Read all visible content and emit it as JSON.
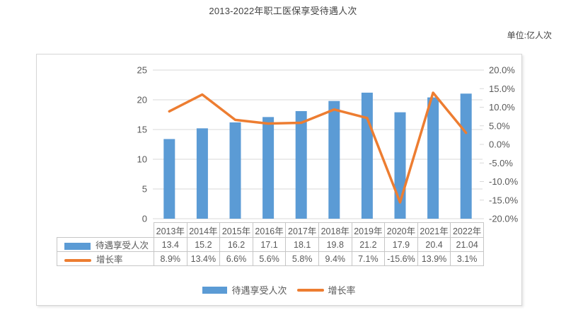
{
  "title": "2013-2022年职工医保享受待遇人次",
  "unit_label": "单位:亿人次",
  "colors": {
    "bar": "#5B9BD5",
    "line": "#ED7D31",
    "grid": "#D9D9D9",
    "axis_text": "#595959",
    "table_text": "#595959",
    "table_border": "#C6C6C6",
    "frame_border": "#D6D6D6"
  },
  "chart_data": {
    "type": "bar+line",
    "categories": [
      "2013年",
      "2014年",
      "2015年",
      "2016年",
      "2017年",
      "2018年",
      "2019年",
      "2020年",
      "2021年",
      "2022年"
    ],
    "series": [
      {
        "name": "待遇享受人次",
        "chart_type": "bar",
        "axis": "left",
        "values": [
          13.4,
          15.2,
          16.2,
          17.1,
          18.1,
          19.8,
          21.2,
          17.9,
          20.4,
          21.04
        ],
        "labels": [
          "13.4",
          "15.2",
          "16.2",
          "17.1",
          "18.1",
          "19.8",
          "21.2",
          "17.9",
          "20.4",
          "21.04"
        ]
      },
      {
        "name": "增长率",
        "chart_type": "line",
        "axis": "right",
        "values": [
          8.9,
          13.4,
          6.6,
          5.6,
          5.8,
          9.4,
          7.1,
          -15.6,
          13.9,
          3.1
        ],
        "labels": [
          "8.9%",
          "13.4%",
          "6.6%",
          "5.6%",
          "5.8%",
          "9.4%",
          "7.1%",
          "-15.6%",
          "13.9%",
          "3.1%"
        ]
      }
    ],
    "left_axis": {
      "min": 0,
      "max": 25,
      "step": 5,
      "ticks": [
        "0",
        "5",
        "10",
        "15",
        "20",
        "25"
      ]
    },
    "right_axis": {
      "min": -20,
      "max": 20,
      "step": 5,
      "ticks": [
        "20.0%",
        "15.0%",
        "10.0%",
        "5.0%",
        "0.0%",
        "-5.0%",
        "-10.0%",
        "-15.0%",
        "-20.0%"
      ]
    },
    "grid": true,
    "show_data_table": true,
    "legend_position": "bottom"
  },
  "legend": {
    "items": [
      {
        "label": "待遇享受人次",
        "swatch": "bar"
      },
      {
        "label": "增长率",
        "swatch": "line"
      }
    ]
  }
}
